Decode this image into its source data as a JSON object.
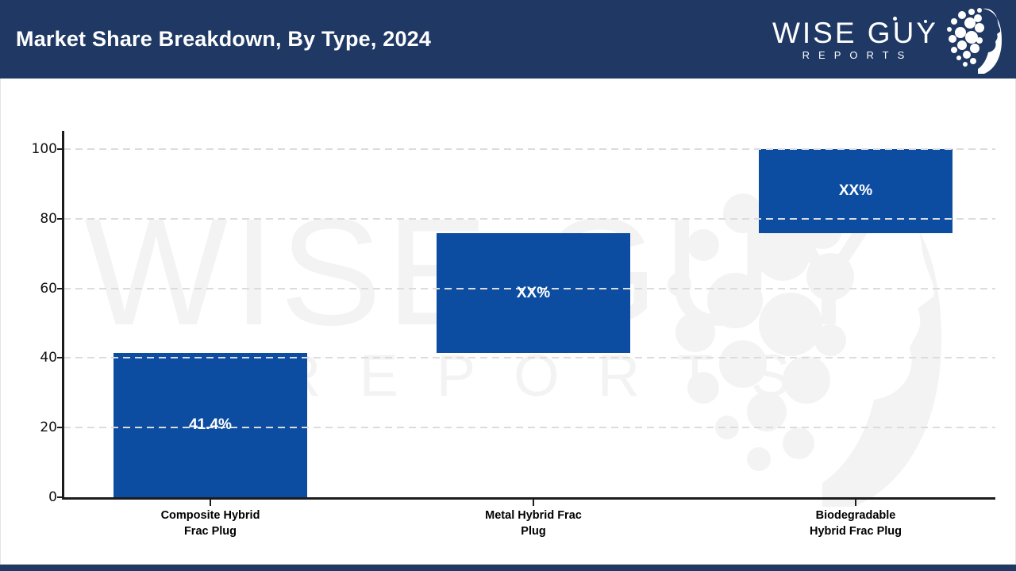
{
  "header": {
    "title": "Market Share Breakdown, By Type, 2024",
    "bg_color": "#1f3864"
  },
  "logo": {
    "line1": "WISE GUY",
    "line2": "REPORTS"
  },
  "watermark": {
    "line1": "WISE GUY",
    "line2": "REPORTS"
  },
  "chart_data": {
    "type": "bar",
    "subtype": "waterfall",
    "title": "Market Share Breakdown, By Type, 2024",
    "categories": [
      [
        "Composite Hybrid",
        "Frac Plug"
      ],
      [
        "Metal Hybrid Frac",
        "Plug"
      ],
      [
        "Biodegradable",
        "Hybrid Frac Plug"
      ]
    ],
    "segments": [
      {
        "start": 0,
        "end": 41.4,
        "label": "41.4%"
      },
      {
        "start": 41.4,
        "end": 75.9,
        "label": "XX%"
      },
      {
        "start": 75.9,
        "end": 100,
        "label": "XX%"
      }
    ],
    "ylim": [
      0,
      100
    ],
    "yticks": [
      0,
      20,
      40,
      60,
      80,
      100
    ],
    "xlabel": "",
    "ylabel": "",
    "grid": "horizontal-dashed",
    "legend": "none",
    "bar_color": "#0c4da2",
    "value_label_color": "#ffffff",
    "accent_navy": "#1f3864"
  }
}
